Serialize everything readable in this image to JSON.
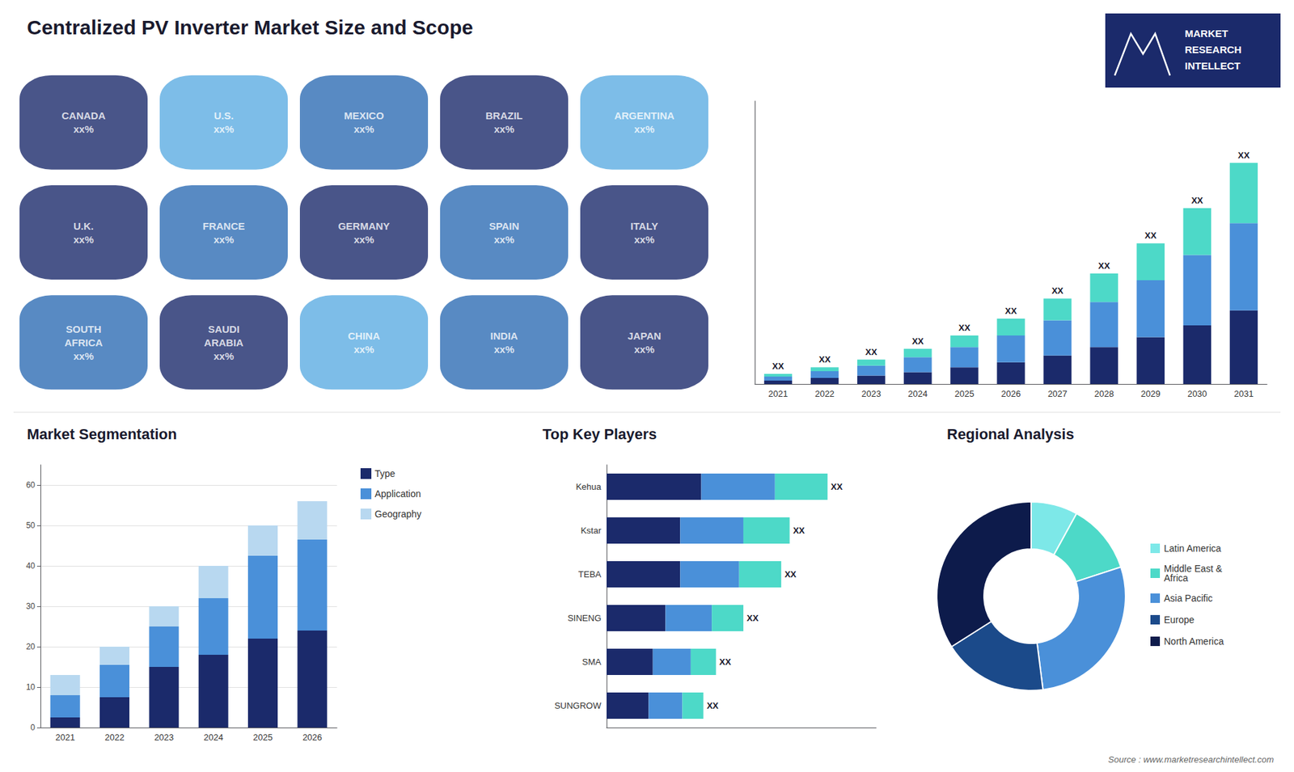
{
  "title": "Centralized PV Inverter Market Size and Scope",
  "logo_text": [
    "MARKET",
    "RESEARCH",
    "INTELLECT"
  ],
  "source": "Source : www.marketresearchintellect.com",
  "chart_data": [
    {
      "type": "map",
      "regions": [
        {
          "name": "CANADA",
          "label": "xx%",
          "color": "#1b2a6b"
        },
        {
          "name": "U.S.",
          "label": "xx%",
          "color": "#5dade2"
        },
        {
          "name": "MEXICO",
          "label": "xx%",
          "color": "#2e6db4"
        },
        {
          "name": "BRAZIL",
          "label": "xx%",
          "color": "#1b2a6b"
        },
        {
          "name": "ARGENTINA",
          "label": "xx%",
          "color": "#5dade2"
        },
        {
          "name": "U.K.",
          "label": "xx%",
          "color": "#1b2a6b"
        },
        {
          "name": "FRANCE",
          "label": "xx%",
          "color": "#2e6db4"
        },
        {
          "name": "GERMANY",
          "label": "xx%",
          "color": "#1b2a6b"
        },
        {
          "name": "SPAIN",
          "label": "xx%",
          "color": "#2e6db4"
        },
        {
          "name": "ITALY",
          "label": "xx%",
          "color": "#1b2a6b"
        },
        {
          "name": "SOUTH\nAFRICA",
          "label": "xx%",
          "color": "#2e6db4"
        },
        {
          "name": "SAUDI\nARABIA",
          "label": "xx%",
          "color": "#1b2a6b"
        },
        {
          "name": "CHINA",
          "label": "xx%",
          "color": "#5dade2"
        },
        {
          "name": "INDIA",
          "label": "xx%",
          "color": "#2e6db4"
        },
        {
          "name": "JAPAN",
          "label": "xx%",
          "color": "#1b2a6b"
        }
      ]
    },
    {
      "type": "bar",
      "stacked": true,
      "categories": [
        "2021",
        "2022",
        "2023",
        "2024",
        "2025",
        "2026",
        "2027",
        "2028",
        "2029",
        "2030",
        "2031"
      ],
      "series": [
        {
          "color": "#1b2a6b",
          "values": [
            1.0,
            1.8,
            2.5,
            3.5,
            5.0,
            6.5,
            8.5,
            11.0,
            14.0,
            17.5,
            22.0
          ]
        },
        {
          "color": "#4a90d9",
          "values": [
            1.2,
            2.0,
            3.0,
            4.5,
            6.0,
            8.0,
            10.5,
            13.5,
            17.0,
            21.0,
            26.0
          ]
        },
        {
          "color": "#4dd9c8",
          "values": [
            0.8,
            1.2,
            1.8,
            2.5,
            3.5,
            5.0,
            6.5,
            8.5,
            11.0,
            14.0,
            18.0
          ]
        }
      ],
      "ylim": [
        0,
        84.48
      ],
      "tick_labels": "x",
      "grid": false,
      "annotations": [
        {
          "category": "2021",
          "text": "XX"
        },
        {
          "category": "2022",
          "text": "XX"
        },
        {
          "category": "2023",
          "text": "XX"
        },
        {
          "category": "2024",
          "text": "XX"
        },
        {
          "category": "2025",
          "text": "XX"
        },
        {
          "category": "2026",
          "text": "XX"
        },
        {
          "category": "2027",
          "text": "XX"
        },
        {
          "category": "2028",
          "text": "XX"
        },
        {
          "category": "2029",
          "text": "XX"
        },
        {
          "category": "2030",
          "text": "XX"
        },
        {
          "category": "2031",
          "text": "XX"
        }
      ]
    },
    {
      "type": "bar",
      "title": "Market Segmentation",
      "stacked": true,
      "categories": [
        "2021",
        "2022",
        "2023",
        "2024",
        "2025",
        "2026"
      ],
      "series": [
        {
          "name": "Type",
          "color": "#1b2a6b",
          "values": [
            2.5,
            7.5,
            15.0,
            18.0,
            22.0,
            24.0
          ]
        },
        {
          "name": "Application",
          "color": "#4a90d9",
          "values": [
            5.5,
            8.0,
            10.0,
            14.0,
            20.5,
            22.5
          ]
        },
        {
          "name": "Geography",
          "color": "#b8d8f0",
          "values": [
            5.0,
            4.5,
            5.0,
            8.0,
            7.5,
            9.5
          ]
        }
      ],
      "ylim": [
        0,
        65
      ],
      "yticks": [
        0,
        10,
        20,
        30,
        40,
        50,
        60
      ],
      "grid": true,
      "legend": "right"
    },
    {
      "type": "bar",
      "title": "Top Key Players",
      "orientation": "horizontal",
      "stacked": true,
      "categories": [
        "Kehua",
        "Kstar",
        "TEBA",
        "SINENG",
        "SMA",
        "SUNGROW"
      ],
      "series": [
        {
          "color": "#1b2a6b",
          "values": [
            4.5,
            3.5,
            3.5,
            2.8,
            2.2,
            2.0
          ]
        },
        {
          "color": "#4a90d9",
          "values": [
            3.5,
            3.0,
            2.8,
            2.2,
            1.8,
            1.6
          ]
        },
        {
          "color": "#4dd9c8",
          "values": [
            2.5,
            2.2,
            2.0,
            1.5,
            1.2,
            1.0
          ]
        }
      ],
      "xlim": [
        0,
        12.81
      ],
      "tick_labels": "y",
      "grid": false,
      "annotations": [
        {
          "category": "Kehua",
          "text": "XX"
        },
        {
          "category": "Kstar",
          "text": "XX"
        },
        {
          "category": "TEBA",
          "text": "XX"
        },
        {
          "category": "SINENG",
          "text": "XX"
        },
        {
          "category": "SMA",
          "text": "XX"
        },
        {
          "category": "SUNGROW",
          "text": "XX"
        }
      ]
    },
    {
      "type": "pie",
      "title": "Regional Analysis",
      "categories": [
        "Latin America",
        "Middle East &\nAfrica",
        "Asia Pacific",
        "Europe",
        "North America"
      ],
      "values": [
        8,
        12,
        28,
        18,
        34
      ],
      "colors": [
        "#7de8e8",
        "#4dd9c8",
        "#4a90d9",
        "#1b4a8a",
        "#0d1b4b"
      ],
      "legend": "right"
    }
  ]
}
